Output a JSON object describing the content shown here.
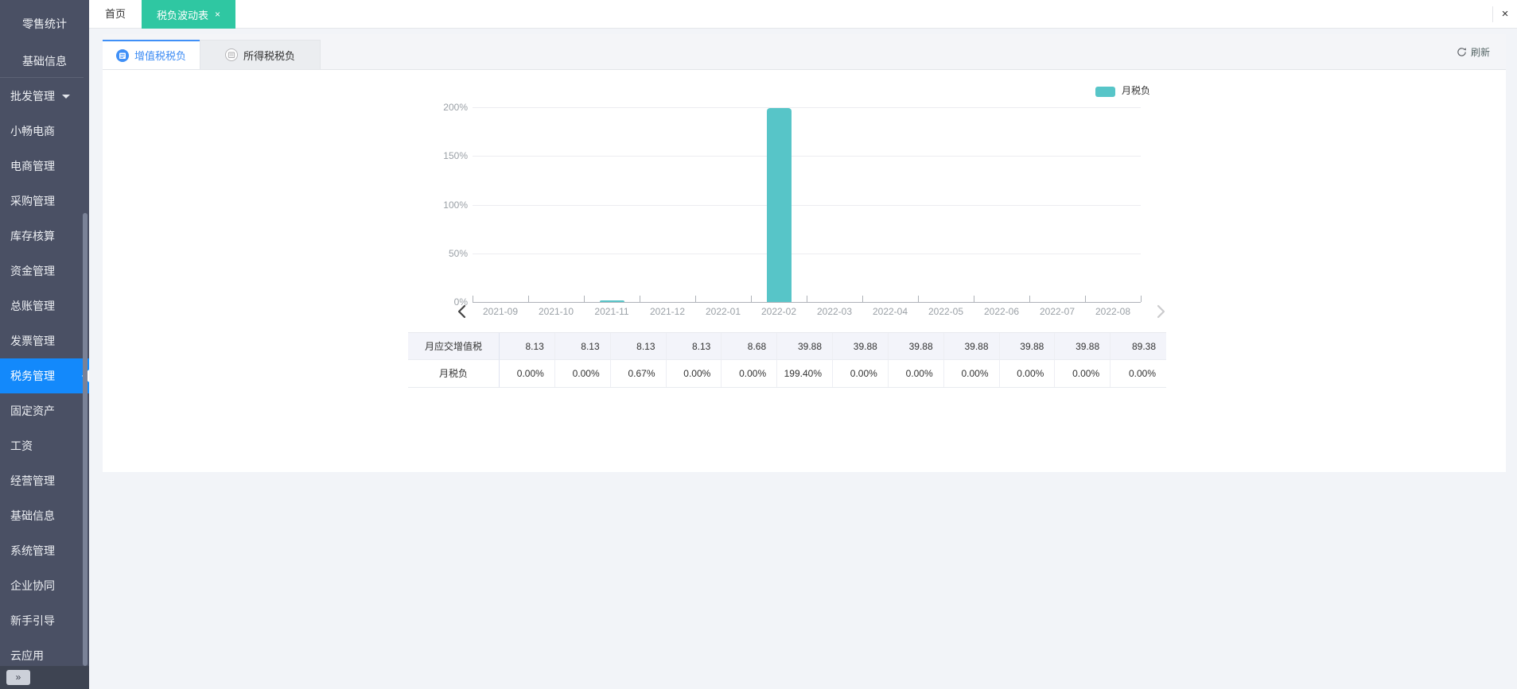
{
  "icons": {
    "close": "×",
    "collapse": "»",
    "prev": "‹",
    "next": "›",
    "dropdown": "▼",
    "refresh": "⟳"
  },
  "sidebar": {
    "top_items": [
      "零售统计",
      "基础信息"
    ],
    "items": [
      {
        "label": "批发管理",
        "has_dropdown": true
      },
      {
        "label": "小畅电商"
      },
      {
        "label": "电商管理"
      },
      {
        "label": "采购管理"
      },
      {
        "label": "库存核算"
      },
      {
        "label": "资金管理"
      },
      {
        "label": "总账管理"
      },
      {
        "label": "发票管理"
      },
      {
        "label": "税务管理",
        "active": true
      },
      {
        "label": "固定资产"
      },
      {
        "label": "工资"
      },
      {
        "label": "经营管理"
      },
      {
        "label": "基础信息"
      },
      {
        "label": "系统管理"
      },
      {
        "label": "企业协同"
      },
      {
        "label": "新手引导"
      },
      {
        "label": "云应用"
      }
    ]
  },
  "tabbar": {
    "home_label": "首页",
    "active_tab": {
      "label": "税负波动表",
      "closable": true
    }
  },
  "panel": {
    "tabs": [
      {
        "label": "增值税税负",
        "active": true
      },
      {
        "label": "所得税税负",
        "active": false
      }
    ],
    "refresh_label": "刷新"
  },
  "chart_data": {
    "type": "bar",
    "title": "",
    "xlabel": "",
    "ylabel": "",
    "categories": [
      "2021-09",
      "2021-10",
      "2021-11",
      "2021-12",
      "2022-01",
      "2022-02",
      "2022-03",
      "2022-04",
      "2022-05",
      "2022-06",
      "2022-07",
      "2022-08"
    ],
    "series": [
      {
        "name": "月税负",
        "unit": "%",
        "color": "#57c5c8",
        "values": [
          0,
          0,
          0.67,
          0,
          0,
          199.4,
          0,
          0,
          0,
          0,
          0,
          0
        ]
      }
    ],
    "ylim": [
      0,
      200
    ],
    "y_ticks": [
      {
        "value": 0,
        "label": "0%"
      },
      {
        "value": 50,
        "label": "50%"
      },
      {
        "value": 100,
        "label": "100%"
      },
      {
        "value": 150,
        "label": "150%"
      },
      {
        "value": 200,
        "label": "200%"
      }
    ],
    "grid": true,
    "legend": {
      "position": "top-right",
      "items": [
        {
          "label": "月税负",
          "color": "#57c5c8"
        }
      ]
    },
    "pager": {
      "has_prev": true,
      "has_next": true
    }
  },
  "table": {
    "row_headers": [
      "月应交增值税",
      "月税负"
    ],
    "rows": [
      [
        "8.13",
        "8.13",
        "8.13",
        "8.13",
        "8.68",
        "39.88",
        "39.88",
        "39.88",
        "39.88",
        "39.88",
        "39.88",
        "89.38"
      ],
      [
        "0.00%",
        "0.00%",
        "0.67%",
        "0.00%",
        "0.00%",
        "199.40%",
        "0.00%",
        "0.00%",
        "0.00%",
        "0.00%",
        "0.00%",
        "0.00%"
      ]
    ]
  },
  "colors": {
    "sidebar_bg": "#4a5064",
    "sidebar_active": "#1389fb",
    "tab_green": "#2fc7a2",
    "panel_tab_blue": "#4090f7",
    "bar_teal": "#57c5c8",
    "table_header_bg": "#e9ecf6",
    "table_row1_bg": "#f3f4fa"
  }
}
